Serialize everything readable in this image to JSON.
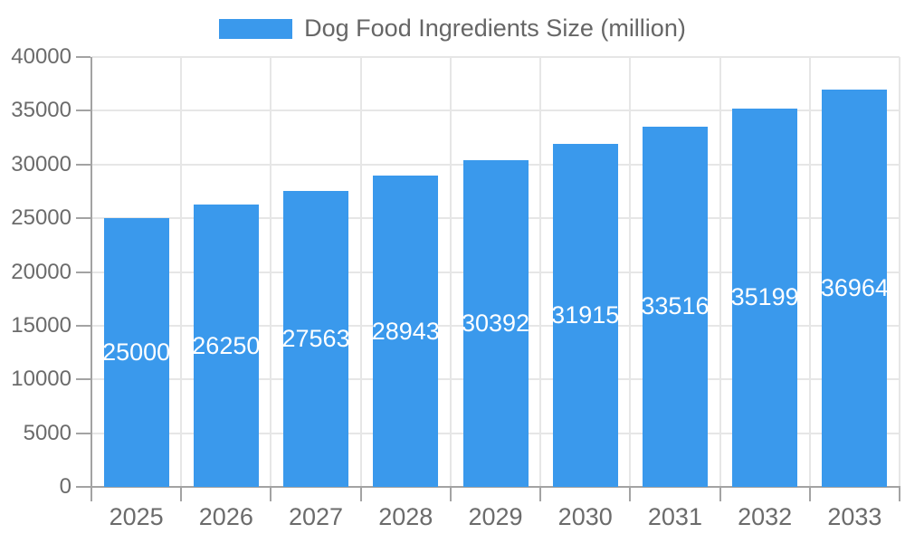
{
  "legend": {
    "label": "Dog Food Ingredients Size (million)"
  },
  "chart_data": {
    "type": "bar",
    "title": "Dog Food Ingredients Size (million)",
    "series_name": "Dog Food Ingredients Size (million)",
    "categories": [
      "2025",
      "2026",
      "2027",
      "2028",
      "2029",
      "2030",
      "2031",
      "2032",
      "2033"
    ],
    "values": [
      25000,
      26250,
      27563,
      28943,
      30392,
      31915,
      33516,
      35199,
      36964
    ],
    "value_labels": [
      "25000",
      "26250",
      "27563",
      "28943",
      "30392",
      "31915",
      "33516",
      "35199",
      "36964"
    ],
    "xlabel": "",
    "ylabel": "",
    "ylim": [
      0,
      40000
    ],
    "ytick_step": 5000,
    "y_ticks": [
      0,
      5000,
      10000,
      15000,
      20000,
      25000,
      30000,
      35000,
      40000
    ],
    "y_tick_labels": [
      "0",
      "5000",
      "10000",
      "15000",
      "20000",
      "25000",
      "30000",
      "35000",
      "40000"
    ],
    "grid": true,
    "legend_position": "top",
    "colors": {
      "bar": "#3a99ec",
      "bar_value_text": "#ffffff",
      "axis_text": "#6b6b6b",
      "legend_text": "#666666",
      "gridline": "#e6e6e6",
      "axis_line": "#a3a3a3",
      "background": "#ffffff"
    }
  }
}
